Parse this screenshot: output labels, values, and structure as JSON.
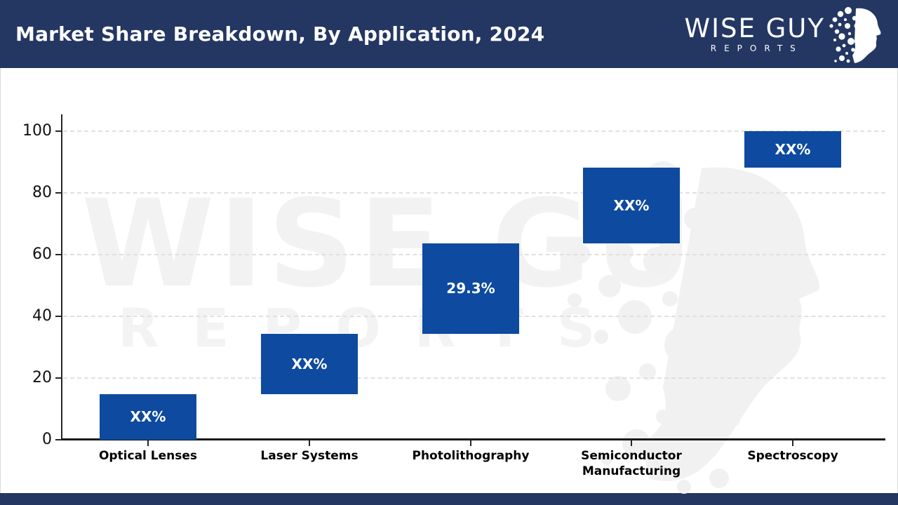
{
  "header": {
    "title": "Market Share Breakdown, By Application, 2024"
  },
  "logo": {
    "name": "WISE GUY",
    "sub": "REPORTS"
  },
  "watermark": {
    "name": "WISE GUY",
    "sub": "REPORTS"
  },
  "chart_data": {
    "type": "bar",
    "variant": "waterfall",
    "title": "Market Share Breakdown, By Application, 2024",
    "xlabel": "",
    "ylabel": "",
    "ylim": [
      0,
      105
    ],
    "yticks": [
      0,
      20,
      40,
      60,
      80,
      100
    ],
    "grid": "horizontal-dashed",
    "legend": "none",
    "categories": [
      "Optical Lenses",
      "Laser Systems",
      "Photolithography",
      "Semiconductor Manufacturing",
      "Spectroscopy"
    ],
    "bars": [
      {
        "category": "Optical Lenses",
        "start": 0,
        "end": 14.8,
        "value_label": "XX%"
      },
      {
        "category": "Laser Systems",
        "start": 14.8,
        "end": 34.4,
        "value_label": "XX%"
      },
      {
        "category": "Photolithography",
        "start": 34.4,
        "end": 63.7,
        "value_label": "29.3%"
      },
      {
        "category": "Semiconductor Manufacturing",
        "start": 63.7,
        "end": 88.1,
        "value_label": "XX%"
      },
      {
        "category": "Spectroscopy",
        "start": 88.1,
        "end": 100,
        "value_label": "XX%"
      }
    ]
  },
  "colors": {
    "header_bg": "#243763",
    "footer_bg": "#243763",
    "bar": "#0e4a9f",
    "grid": "#e0e0e0",
    "axis": "#262626",
    "text": "#111111",
    "watermark": "#f1f1f1"
  }
}
